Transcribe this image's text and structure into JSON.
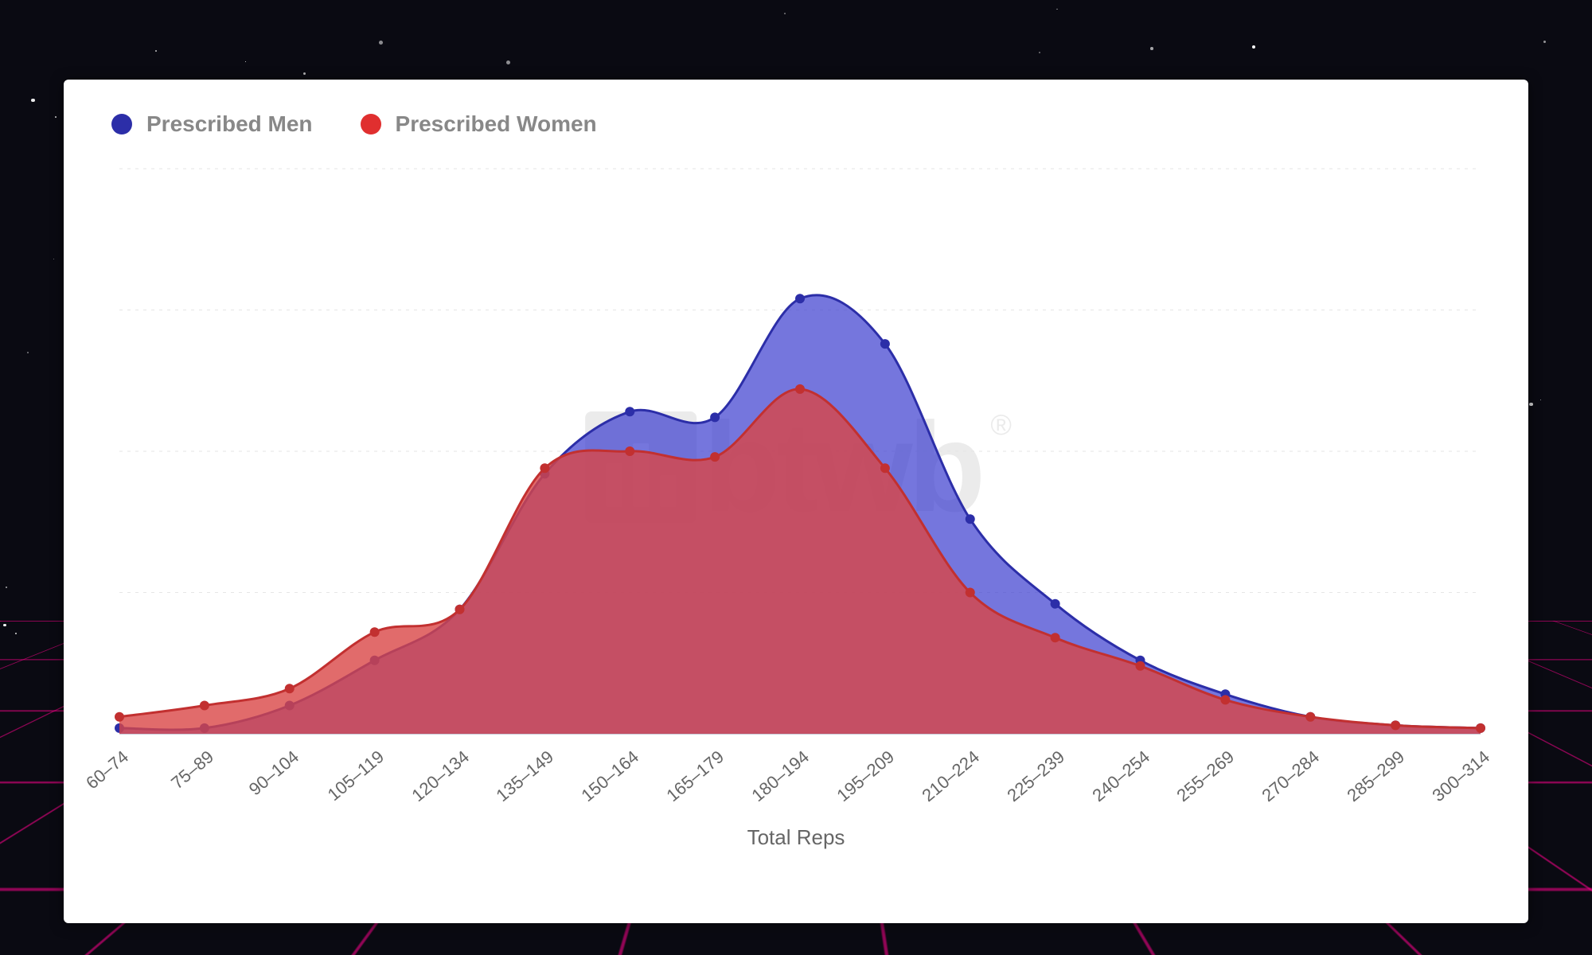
{
  "background": {
    "sky_color": "#0a0a12",
    "star_color": "#ffffff",
    "grid_color": "#ff008c",
    "star_count": 120
  },
  "card": {
    "background_color": "#ffffff"
  },
  "watermark": {
    "text": "btwb",
    "color": "#d4d4d4",
    "registered": "®"
  },
  "legend": {
    "label_color": "#888888",
    "label_fontsize": 28,
    "items": [
      {
        "label": "Prescribed Men",
        "color": "#2c2ea8"
      },
      {
        "label": "Prescribed Women",
        "color": "#e02f2f"
      }
    ]
  },
  "chart": {
    "type": "area",
    "x_title": "Total Reps",
    "x_title_fontsize": 26,
    "tick_label_fontsize": 22,
    "tick_label_color": "#666666",
    "tick_label_rotation_deg": -40,
    "grid_color": "#e6e6e6",
    "baseline_color": "#c8c8d4",
    "plot_background": "#ffffff",
    "marker_radius": 6,
    "line_width": 3,
    "ylim": [
      0,
      100
    ],
    "y_gridlines": [
      25,
      50,
      75,
      100
    ],
    "categories": [
      "60–74",
      "75–89",
      "90–104",
      "105–119",
      "120–134",
      "135–149",
      "150–164",
      "165–179",
      "180–194",
      "195–209",
      "210–224",
      "225–239",
      "240–254",
      "255–269",
      "270–284",
      "285–299",
      "300–314"
    ],
    "series": [
      {
        "name": "Prescribed Men",
        "line_color": "#2c2ea8",
        "fill_color": "#3a3ccf",
        "fill_opacity": 0.7,
        "marker_color": "#2c2ea8",
        "values": [
          1,
          1,
          5,
          13,
          22,
          46,
          57,
          56,
          77,
          69,
          38,
          23,
          13,
          7,
          3,
          1.5,
          1
        ]
      },
      {
        "name": "Prescribed Women",
        "line_color": "#c23030",
        "fill_color": "#d94646",
        "fill_opacity": 0.8,
        "marker_color": "#c23030",
        "values": [
          3,
          5,
          8,
          18,
          22,
          47,
          50,
          49,
          61,
          47,
          25,
          17,
          12,
          6,
          3,
          1.5,
          1
        ]
      }
    ]
  }
}
